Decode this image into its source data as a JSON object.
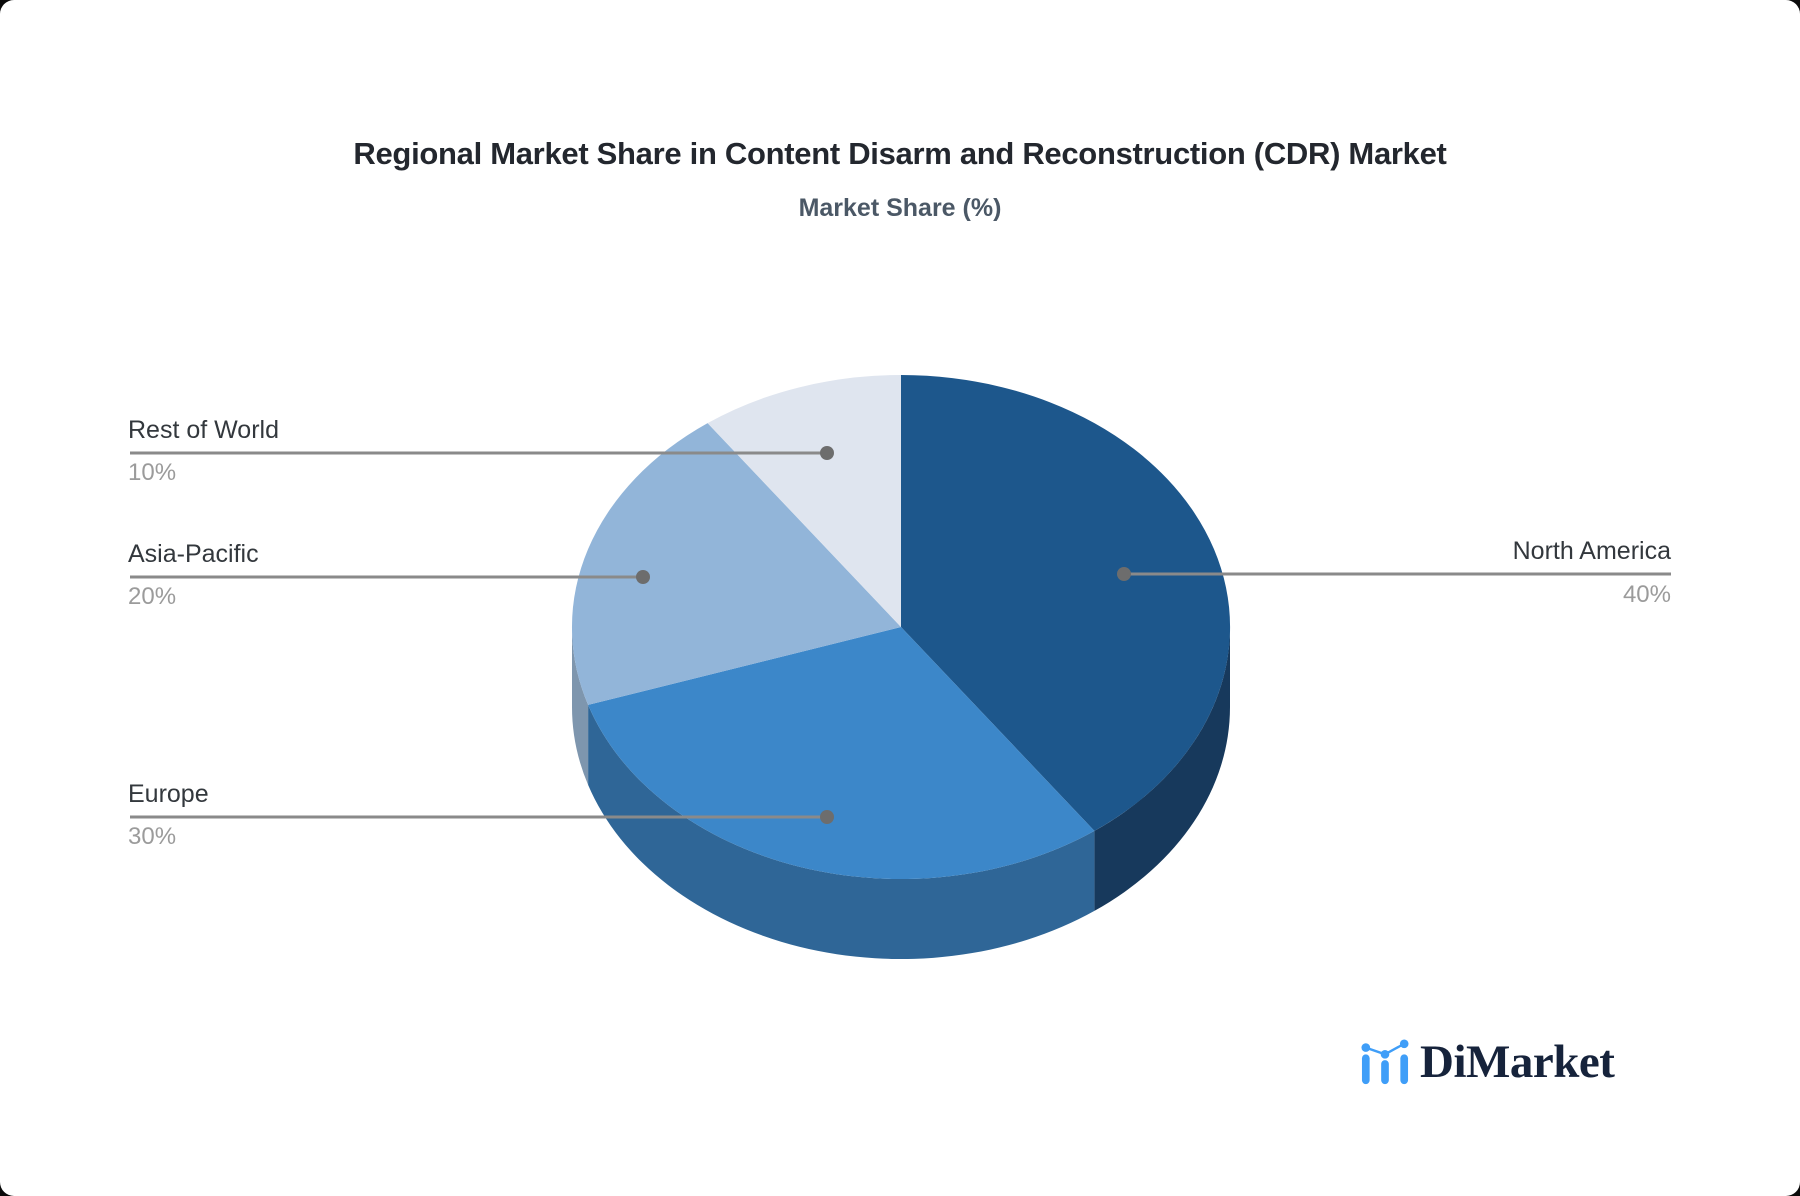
{
  "page": {
    "title": "Regional Market Share in Content Disarm and Reconstruction (CDR) Market",
    "subtitle": "Market Share (%)"
  },
  "chart_data": {
    "type": "pie",
    "style": "3d",
    "title": "Regional Market Share in Content Disarm and Reconstruction (CDR) Market",
    "subtitle": "Market Share (%)",
    "unit": "%",
    "start_angle_deg": 0,
    "direction": "clockwise",
    "legend_position": "callout-labels",
    "slices": [
      {
        "label": "North America",
        "value": 40,
        "display_value": "40%",
        "color": "#1d578c",
        "side_color": "#17395c",
        "callout_side": "right"
      },
      {
        "label": "Europe",
        "value": 30,
        "display_value": "30%",
        "color": "#3c87c9",
        "side_color": "#2f6697",
        "callout_side": "left"
      },
      {
        "label": "Asia-Pacific",
        "value": 20,
        "display_value": "20%",
        "color": "#92b5d9",
        "side_color": "#7e96ae",
        "callout_side": "left"
      },
      {
        "label": "Rest of World",
        "value": 10,
        "display_value": "10%",
        "color": "#dfe5ef",
        "side_color": "#c3ccda",
        "callout_side": "left"
      }
    ],
    "callout_line_color": "#8a8a8a",
    "callout_dot_color": "#6d6d6d",
    "label_color": "#33383d",
    "value_color": "#9b9b9b"
  },
  "branding": {
    "name": "DiMarket",
    "icon": "bar-line-chart-icon",
    "text_color": "#16233b",
    "icon_color": "#3f9ef8"
  }
}
